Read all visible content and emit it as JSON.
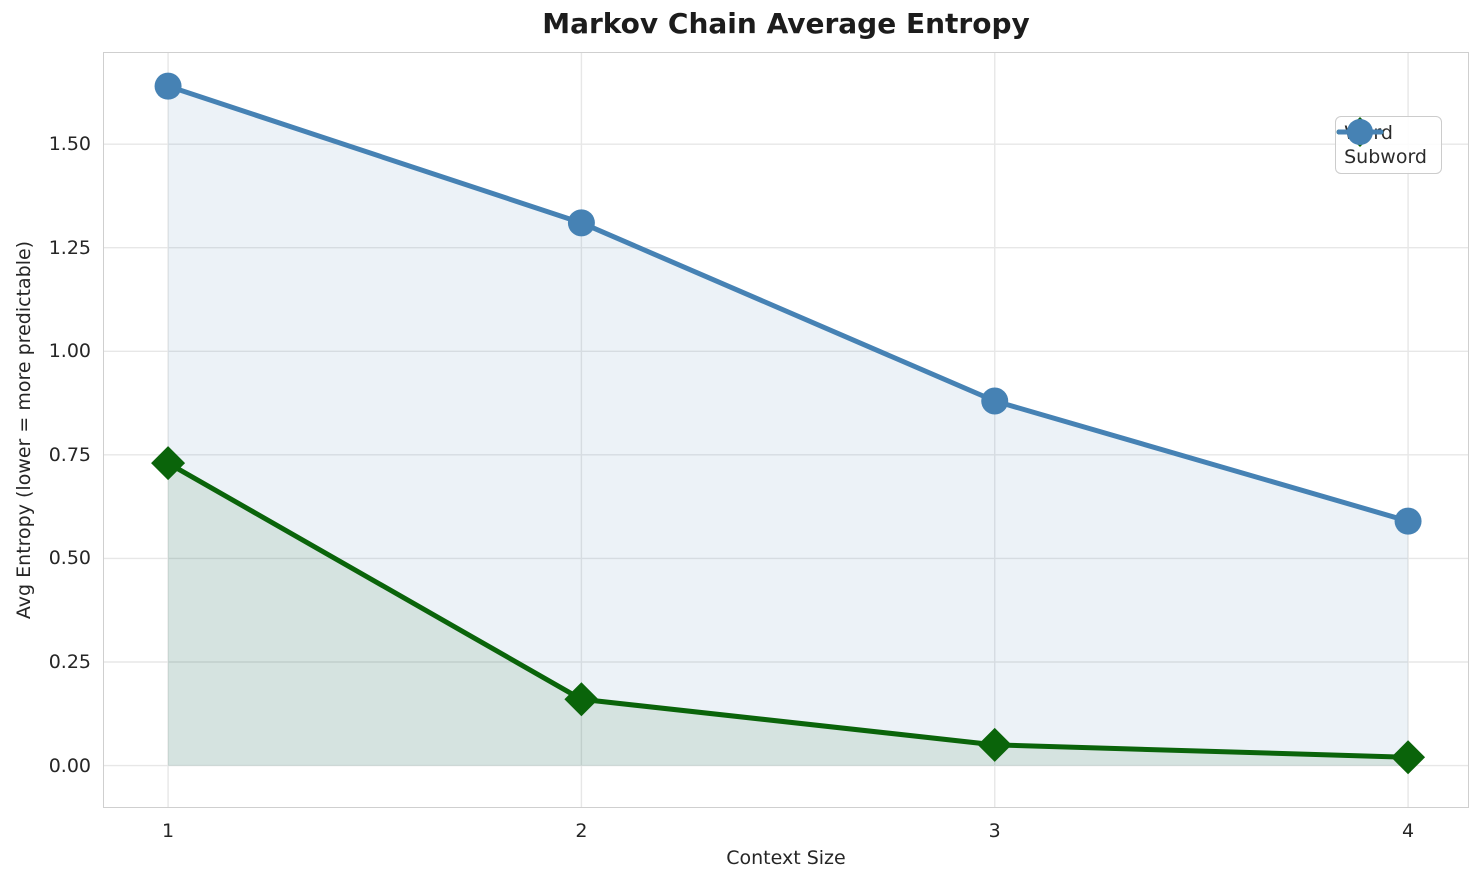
{
  "chart_data": {
    "type": "line",
    "title": "Markov Chain Average Entropy",
    "xlabel": "Context Size",
    "ylabel": "Avg Entropy (lower = more predictable)",
    "x": [
      1,
      2,
      3,
      4
    ],
    "xtick_labels": [
      "1",
      "2",
      "3",
      "4"
    ],
    "yticks": [
      0.0,
      0.25,
      0.5,
      0.75,
      1.0,
      1.25,
      1.5
    ],
    "ytick_labels": [
      "0.00",
      "0.25",
      "0.50",
      "0.75",
      "1.00",
      "1.25",
      "1.50"
    ],
    "xlim": [
      0.845,
      4.145
    ],
    "ylim": [
      -0.1,
      1.72
    ],
    "grid": true,
    "legend_position": "upper right",
    "area_fill_to_zero": true,
    "fill_opacity": 0.1,
    "series": [
      {
        "name": "Word",
        "marker": "diamond",
        "color": "#0a640a",
        "values": [
          0.73,
          0.16,
          0.05,
          0.02
        ]
      },
      {
        "name": "Subword",
        "marker": "circle",
        "color": "#4682b4",
        "values": [
          1.64,
          1.31,
          0.88,
          0.59
        ]
      }
    ],
    "style": {
      "grid_color": "#e7e7e7",
      "spine_color": "#cfcfcf",
      "text_color": "#262626",
      "background": "#ffffff"
    }
  }
}
